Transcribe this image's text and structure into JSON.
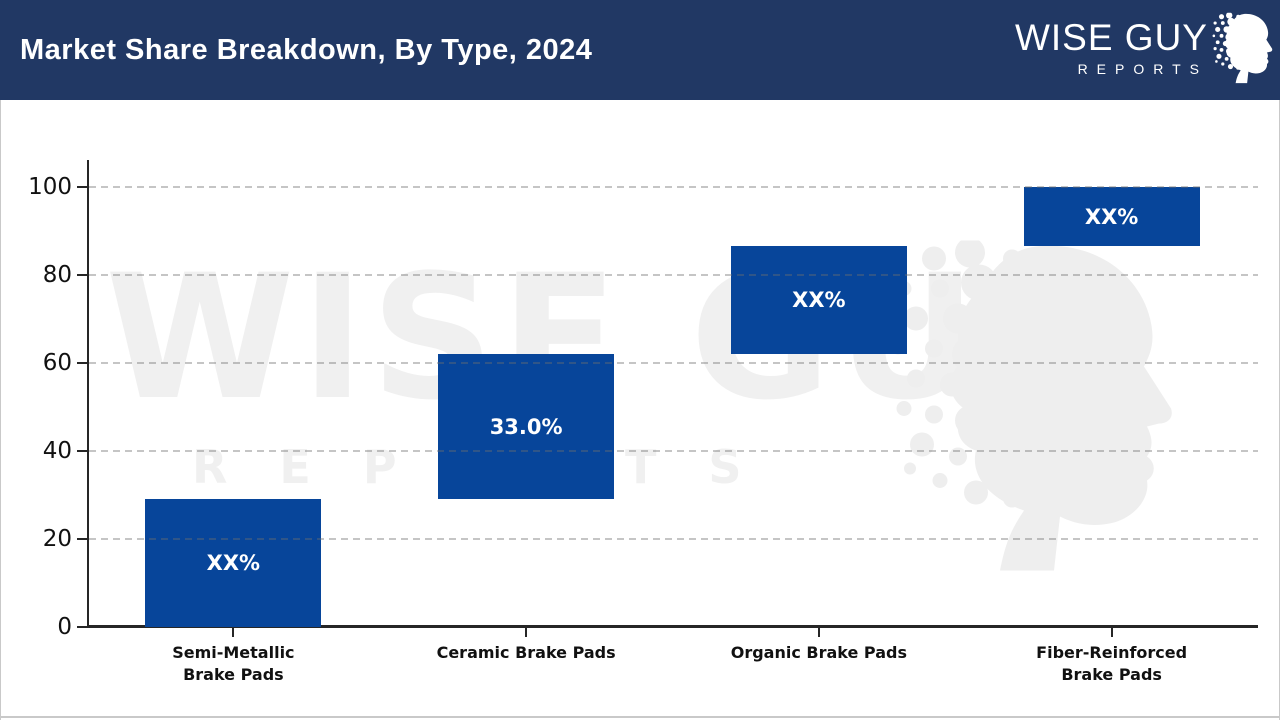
{
  "header": {
    "title": "Market Share Breakdown, By Type, 2024",
    "logo": {
      "name": "WISE GUY",
      "sub": "REPORTS"
    }
  },
  "watermark": {
    "name": "WISE GUY",
    "sub": "REPORTS"
  },
  "chart_data": {
    "type": "bar",
    "variant": "floating-segment-waterfall",
    "title": "Market Share Breakdown, By Type, 2024",
    "xlabel": "",
    "ylabel": "",
    "ylim": [
      0,
      106
    ],
    "y_ticks": [
      0,
      20,
      40,
      60,
      80,
      100
    ],
    "grid": "horizontal-dashed",
    "legend": "none",
    "bar_color": "#07459A",
    "label_color": "#ffffff",
    "categories": [
      "Semi-Metallic Brake Pads",
      "Ceramic Brake Pads",
      "Organic Brake Pads",
      "Fiber-Reinforced Brake Pads"
    ],
    "segments": [
      {
        "category": "Semi-Metallic Brake Pads",
        "display": "Semi-Metallic\nBrake Pads",
        "start": 0,
        "end": 29,
        "label": "XX%"
      },
      {
        "category": "Ceramic Brake Pads",
        "display": "Ceramic Brake Pads",
        "start": 29,
        "end": 62,
        "label": "33.0%",
        "value_pct": 33.0
      },
      {
        "category": "Organic Brake Pads",
        "display": "Organic Brake Pads",
        "start": 62,
        "end": 86.5,
        "label": "XX%"
      },
      {
        "category": "Fiber-Reinforced Brake Pads",
        "display": "Fiber-Reinforced\nBrake Pads",
        "start": 86.5,
        "end": 100,
        "label": "XX%"
      }
    ]
  },
  "colors": {
    "header_bg": "#213864",
    "bar": "#07459A",
    "axis": "#262626",
    "watermark": "#efefef",
    "page_border": "#c9c9c9"
  }
}
